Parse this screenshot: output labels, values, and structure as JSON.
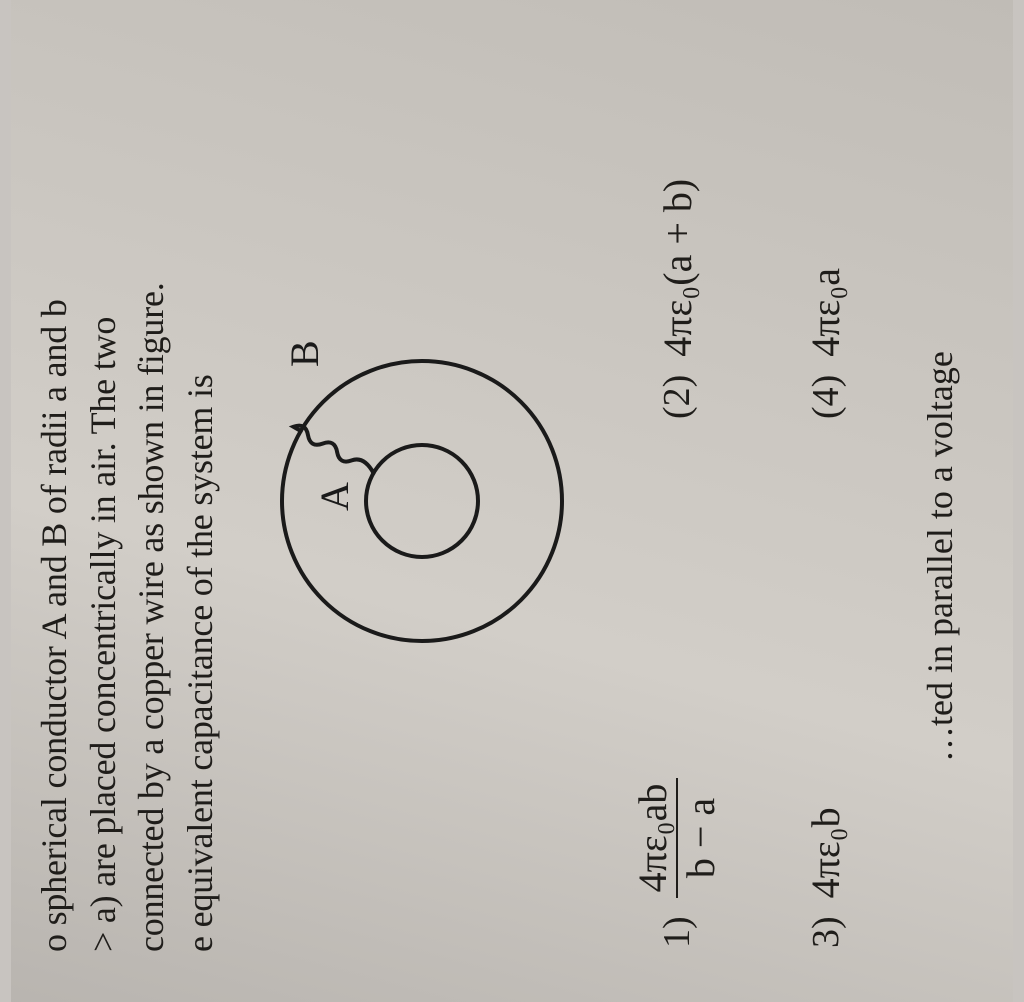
{
  "question": {
    "line1_prefix": "o spherical conductor A and B of radii a and b",
    "line2": "> a) are placed concentrically in air. The two",
    "line3_prefix": " connected by a copper wire as shown in figure.",
    "line4_prefix": "e equivalent capacitance of the system is"
  },
  "diagram": {
    "labelA": "A",
    "labelB": "B",
    "outer_radius": 140,
    "inner_radius": 56,
    "stroke_color": "#1a1a1a",
    "stroke_width": 4
  },
  "options": {
    "o1": {
      "num": "4πε₀ab",
      "den": "b − a"
    },
    "o2": {
      "label": "(2)",
      "expr": "4πε₀(a + b)"
    },
    "o3": {
      "label": "3)",
      "expr": "4πε₀b"
    },
    "o4": {
      "label": "(4)",
      "expr": "4πε₀a"
    }
  },
  "footer": "…ted in parallel to a voltage"
}
